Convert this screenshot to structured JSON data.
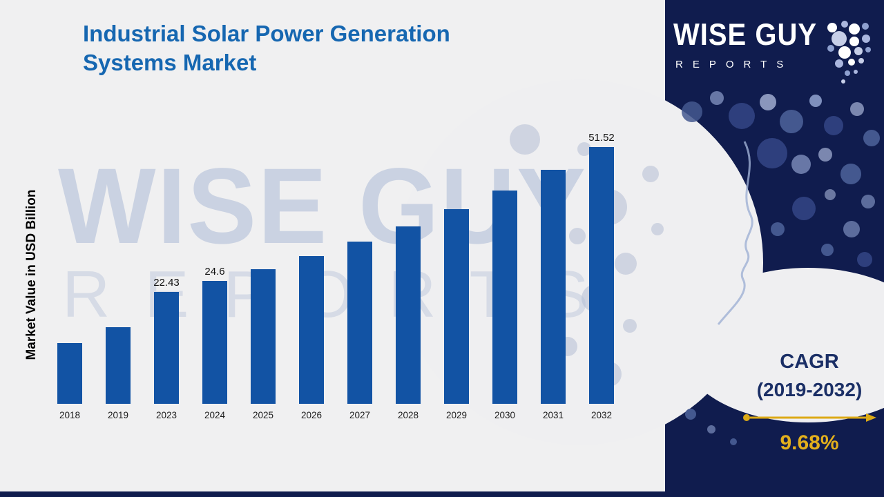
{
  "page": {
    "background": "#f0f0f1",
    "accent_navy": "#101c4e",
    "accent_gold": "#dcaa16",
    "title_color": "#1667b1"
  },
  "header": {
    "title": "Industrial Solar Power Generation Systems Market"
  },
  "brand": {
    "wordmark_top": "WISE GUY",
    "wordmark_bottom": "REPORTS"
  },
  "watermark": {
    "line1": "WISE GUY",
    "line2": "REPORTS"
  },
  "cagr": {
    "label": "CAGR",
    "range": "(2019-2032)",
    "value": "9.68%"
  },
  "chart_data": {
    "type": "bar",
    "title": "Industrial Solar Power Generation Systems Market",
    "ylabel": "Market Value in USD Billion",
    "xlabel": "",
    "unit": "USD Billion",
    "categories": [
      "2018",
      "2019",
      "2023",
      "2024",
      "2025",
      "2026",
      "2027",
      "2028",
      "2029",
      "2030",
      "2031",
      "2032"
    ],
    "values": [
      12.2,
      15.4,
      22.43,
      24.6,
      27.0,
      29.6,
      32.5,
      35.6,
      39.0,
      42.8,
      46.9,
      51.52
    ],
    "value_labels": {
      "2023": "22.43",
      "2024": "24.6",
      "2032": "51.52"
    },
    "ylim": [
      0,
      55
    ],
    "grid": false,
    "legend": false,
    "bar_color": "#1253a4"
  }
}
